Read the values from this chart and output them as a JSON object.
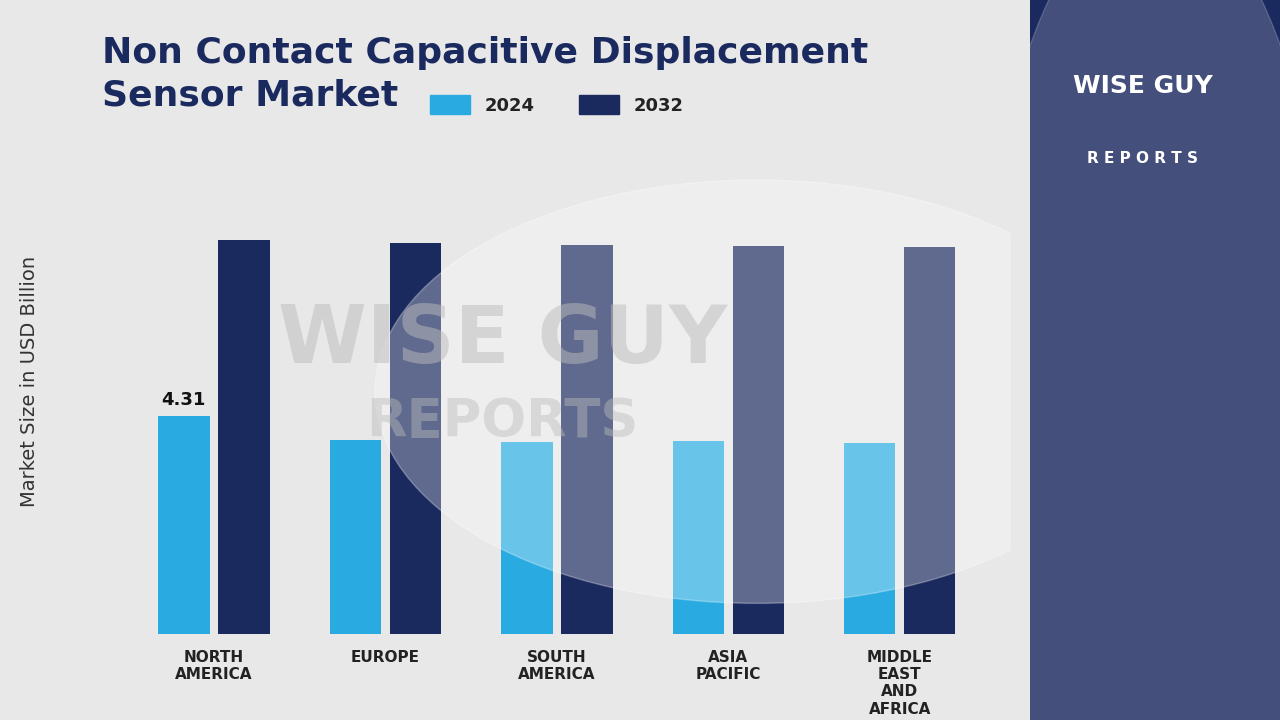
{
  "title": "Non Contact Capacitive Displacement\nSensor Market",
  "ylabel": "Market Size in USD Billion",
  "categories": [
    "NORTH\nAMERICA",
    "EUROPE",
    "SOUTH\nAMERICA",
    "ASIA\nPACIFIC",
    "MIDDLE\nEAST\nAND\nAFRICA"
  ],
  "values_2024": [
    4.31,
    3.85,
    3.8,
    3.82,
    3.78
  ],
  "values_2032": [
    7.8,
    7.75,
    7.72,
    7.7,
    7.68
  ],
  "color_2024": "#29ABE2",
  "color_2032": "#1B2A5E",
  "label_2024": "2024",
  "label_2032": "2032",
  "annotation_value": "4.31",
  "background_color": "#E8E8E8",
  "right_panel_color": "#1B2A5E",
  "title_color": "#1B2A5E",
  "ylabel_color": "#333333",
  "bar_label_color": "#111111",
  "ylim": [
    0,
    10
  ],
  "title_fontsize": 26,
  "ylabel_fontsize": 14,
  "tick_fontsize": 11,
  "legend_fontsize": 13
}
